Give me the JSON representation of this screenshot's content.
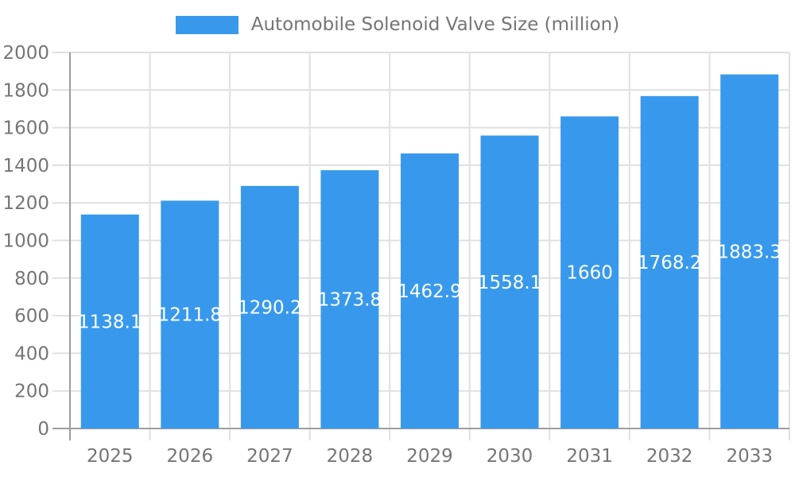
{
  "legend": {
    "label": "Automobile Solenoid Valve Size (million)"
  },
  "chart_data": {
    "type": "bar",
    "title": "Automobile Solenoid Valve Size (million)",
    "categories": [
      "2025",
      "2026",
      "2027",
      "2028",
      "2029",
      "2030",
      "2031",
      "2032",
      "2033"
    ],
    "values": [
      1138.1,
      1211.8,
      1290.2,
      1373.8,
      1462.9,
      1558.1,
      1660,
      1768.2,
      1883.3
    ],
    "xlabel": "",
    "ylabel": "",
    "ylim": [
      0,
      2000
    ],
    "ytick_step": 200,
    "ytick_labels": [
      "0",
      "200",
      "400",
      "600",
      "800",
      "1000",
      "1200",
      "1400",
      "1600",
      "1800",
      "2000"
    ],
    "grid": true,
    "legend_position": "top-center",
    "value_labels_inside_bars": true,
    "colors": {
      "bar": "#3899EC",
      "value_label": "#FFFFFF",
      "axis_text": "#757575",
      "gridline": "#E0E0E0",
      "axis_line": "#9E9E9E"
    }
  }
}
